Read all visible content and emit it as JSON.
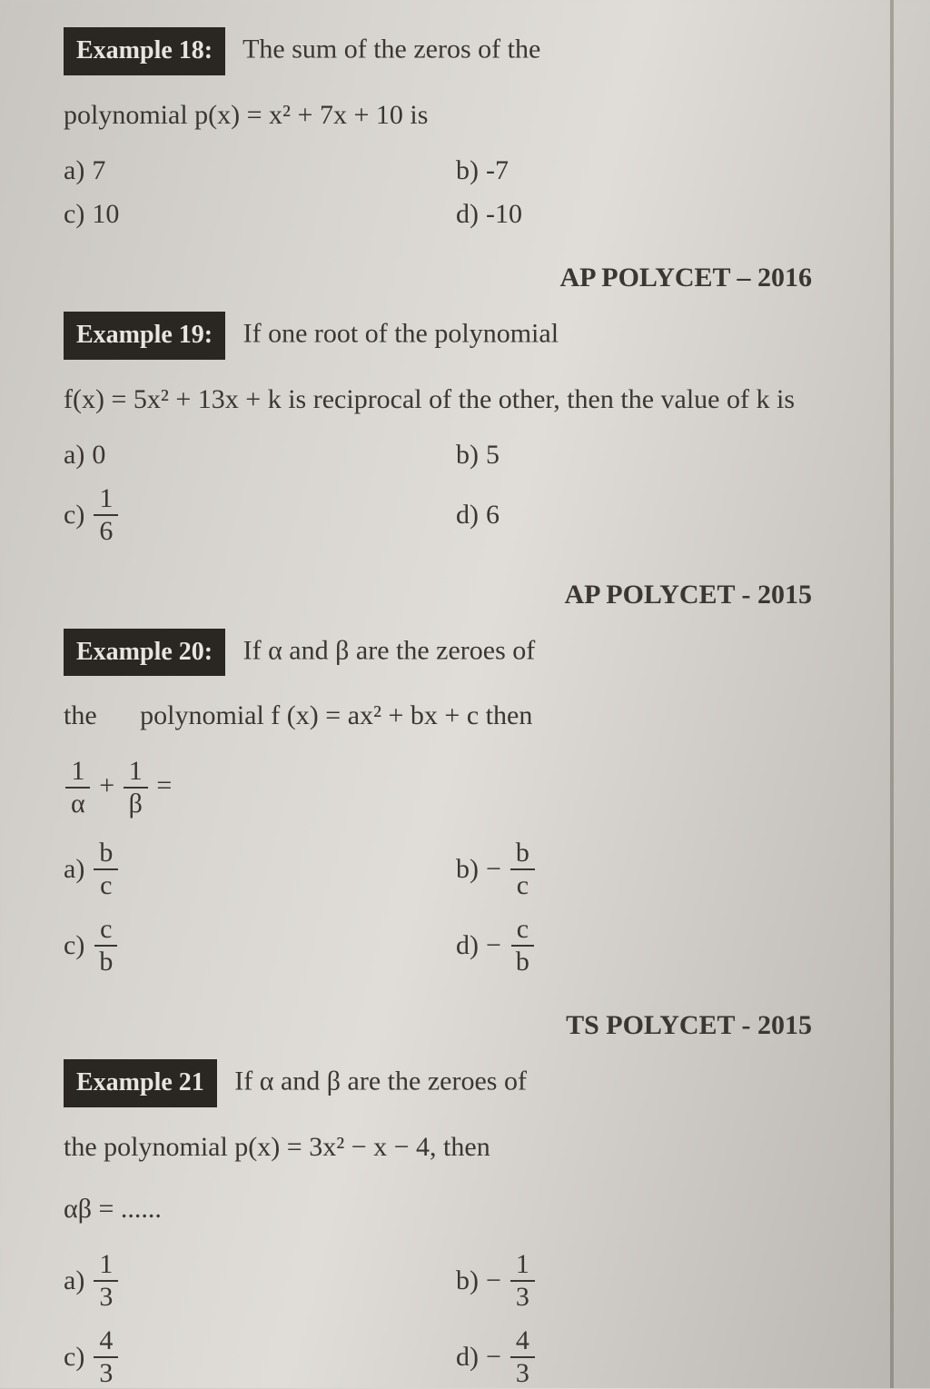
{
  "examples": [
    {
      "label": "Example 18:",
      "text_part1": "The sum of the zeros of the",
      "text_part2": "polynomial p(x) = x² + 7x + 10 is",
      "options": [
        {
          "key": "a)",
          "value": "7"
        },
        {
          "key": "b)",
          "value": "-7"
        },
        {
          "key": "c)",
          "value": "10"
        },
        {
          "key": "d)",
          "value": "-10"
        }
      ],
      "source": "AP POLYCET – 2016"
    },
    {
      "label": "Example 19:",
      "text_part1": "If one root of the polynomial",
      "text_part2": "f(x) = 5x² + 13x + k is reciprocal of the other, then the value of k is",
      "options": [
        {
          "key": "a)",
          "value": "0"
        },
        {
          "key": "b)",
          "value": "5"
        },
        {
          "key": "c)",
          "num": "1",
          "den": "6"
        },
        {
          "key": "d)",
          "value": "6"
        }
      ],
      "source": "AP POLYCET - 2015"
    },
    {
      "label": "Example 20:",
      "text_part1": "If α and β are the zeroes of",
      "intro_word": "the",
      "text_part2": "polynomial f (x) = ax² + bx + c then",
      "equation": {
        "frac1": {
          "num": "1",
          "den": "α"
        },
        "plus": "+",
        "frac2": {
          "num": "1",
          "den": "β"
        },
        "equals": "="
      },
      "options": [
        {
          "key": "a)",
          "num": "b",
          "den": "c"
        },
        {
          "key": "b)",
          "neg": "−",
          "num": "b",
          "den": "c"
        },
        {
          "key": "c)",
          "num": "c",
          "den": "b"
        },
        {
          "key": "d)",
          "neg": "−",
          "num": "c",
          "den": "b"
        }
      ],
      "source": "TS POLYCET - 2015"
    },
    {
      "label": "Example 21",
      "text_part1": "If α and β are the zeroes of",
      "text_part2": "the polynomial p(x) = 3x² − x − 4, then",
      "text_part3": "αβ = ......",
      "options": [
        {
          "key": "a)",
          "num": "1",
          "den": "3"
        },
        {
          "key": "b)",
          "neg": "−",
          "num": "1",
          "den": "3"
        },
        {
          "key": "c)",
          "num": "4",
          "den": "3"
        },
        {
          "key": "d)",
          "neg": "−",
          "num": "4",
          "den": "3"
        }
      ]
    }
  ]
}
